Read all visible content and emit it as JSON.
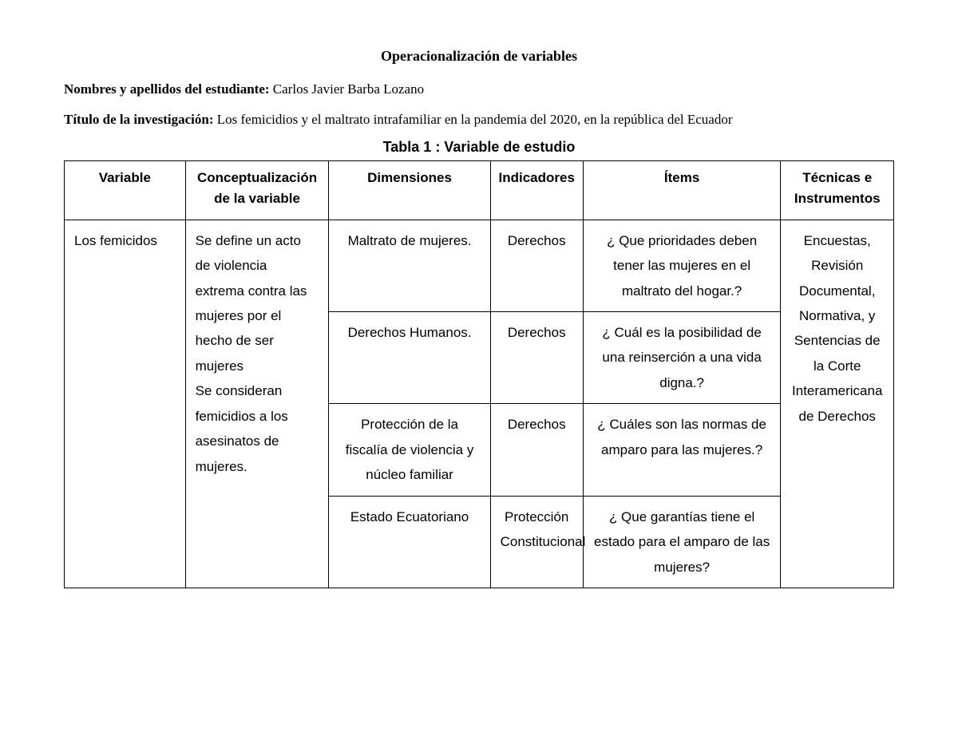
{
  "docTitle": "Operacionalización de variables",
  "meta": {
    "nameLabel": "Nombres y apellidos del estudiante:",
    "nameValue": "Carlos Javier Barba Lozano",
    "titleLabel": "Título de la investigación:",
    "titleValue": "Los femicidios y el maltrato intrafamiliar en la pandemia del 2020, en la república del Ecuador"
  },
  "tableCaption": "Tabla 1 : Variable de estudio",
  "columns": [
    "Variable",
    "Conceptualización de la variable",
    "Dimensiones",
    "Indicadores",
    "Ítems",
    "Técnicas e Instrumentos"
  ],
  "body": {
    "variable": "Los femicidos",
    "concept": "Se define un acto de violencia extrema contra las mujeres por el hecho de ser mujeres\nSe consideran femicidios a los asesinatos de mujeres.",
    "tech": "Encuestas, Revisión Documental, Normativa, y Sentencias de la Corte Interamericana de Derechos",
    "rows": [
      {
        "dim": "Maltrato de mujeres.",
        "ind": "Derechos",
        "item": "¿ Que prioridades deben tener las mujeres en el maltrato del hogar.?"
      },
      {
        "dim": "Derechos Humanos.",
        "ind": "Derechos",
        "item": "¿ Cuál es la posibilidad de una reinserción a una vida digna.?"
      },
      {
        "dim": "Protección de la fiscalía de violencia y núcleo familiar",
        "ind": "Derechos",
        "item": "¿ Cuáles son las normas de amparo para las mujeres.?"
      },
      {
        "dim": "Estado Ecuatoriano",
        "ind": "Protección Constitucional",
        "item": "¿ Que garantías tiene el estado para el amparo de las mujeres?"
      }
    ]
  },
  "style": {
    "colors": {
      "background": "#ffffff",
      "text": "#000000",
      "border": "#000000",
      "underlineAccent": "#c00000"
    },
    "fonts": {
      "title": "Times New Roman",
      "meta": "Times New Roman",
      "table": "Verdana"
    },
    "fontSizes": {
      "title": 18,
      "meta": 17,
      "caption": 18,
      "th": 17,
      "td": 17,
      "concept": 16
    },
    "columnWidthsPx": [
      150,
      178,
      200,
      115,
      245,
      140
    ]
  }
}
